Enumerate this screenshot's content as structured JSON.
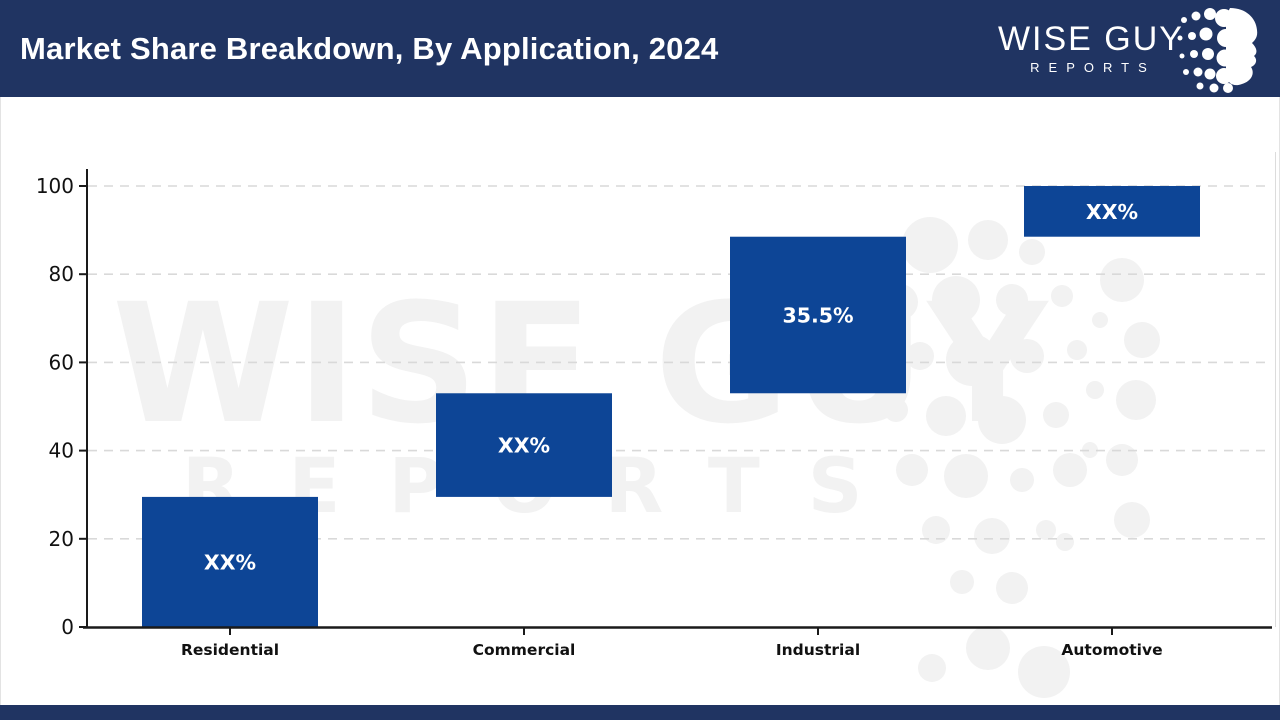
{
  "header": {
    "title": "Market Share Breakdown, By Application, 2024",
    "logo": {
      "line1": "WISE GUY",
      "line2": "REPORTS"
    }
  },
  "watermark": {
    "line1": "WISE GUY",
    "line2": "REPORTS"
  },
  "colors": {
    "header_bg": "#203462",
    "footer_bg": "#203462",
    "bar": "#0d4596",
    "bar_label": "#ffffff",
    "grid": "#d9d9d9",
    "axis": "#1a1a1a",
    "tick_label": "#111111",
    "watermark": "#f2f2f2"
  },
  "chart_data": {
    "type": "bar",
    "subtype": "waterfall",
    "title": "Market Share Breakdown, By Application, 2024",
    "categories": [
      "Residential",
      "Commercial",
      "Industrial",
      "Automotive"
    ],
    "starts": [
      0,
      29.5,
      53,
      88.5
    ],
    "values": [
      29.5,
      23.5,
      35.5,
      11.5
    ],
    "bar_labels": [
      "XX%",
      "XX%",
      "35.5%",
      "XX%"
    ],
    "xlabel": "",
    "ylabel": "",
    "ylim": [
      0,
      100
    ],
    "yticks": [
      0,
      20,
      40,
      60,
      80,
      100
    ],
    "grid": "horizontal-dashed",
    "legend": "none"
  }
}
